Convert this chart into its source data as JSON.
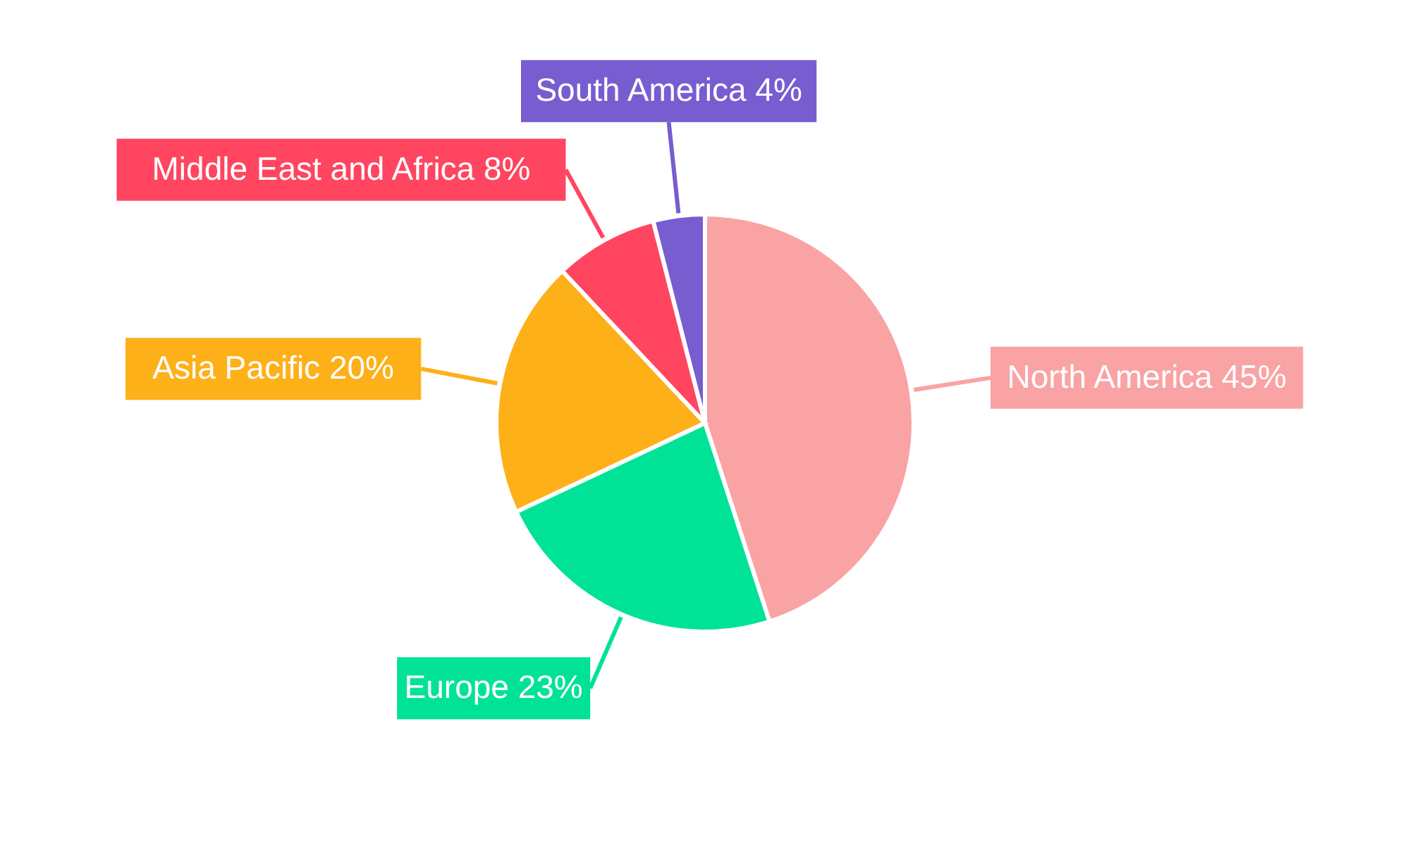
{
  "chart_data": {
    "type": "pie",
    "categories": [
      "North America",
      "Europe",
      "Asia Pacific",
      "Middle East and Africa",
      "South America"
    ],
    "values": [
      45,
      23,
      20,
      8,
      4
    ],
    "value_labels": [
      "45%",
      "23%",
      "20%",
      "8%",
      "4%"
    ],
    "colors": [
      "#f9a3a4",
      "#00e396",
      "#feb019",
      "#ff4560",
      "#775dd0"
    ]
  }
}
